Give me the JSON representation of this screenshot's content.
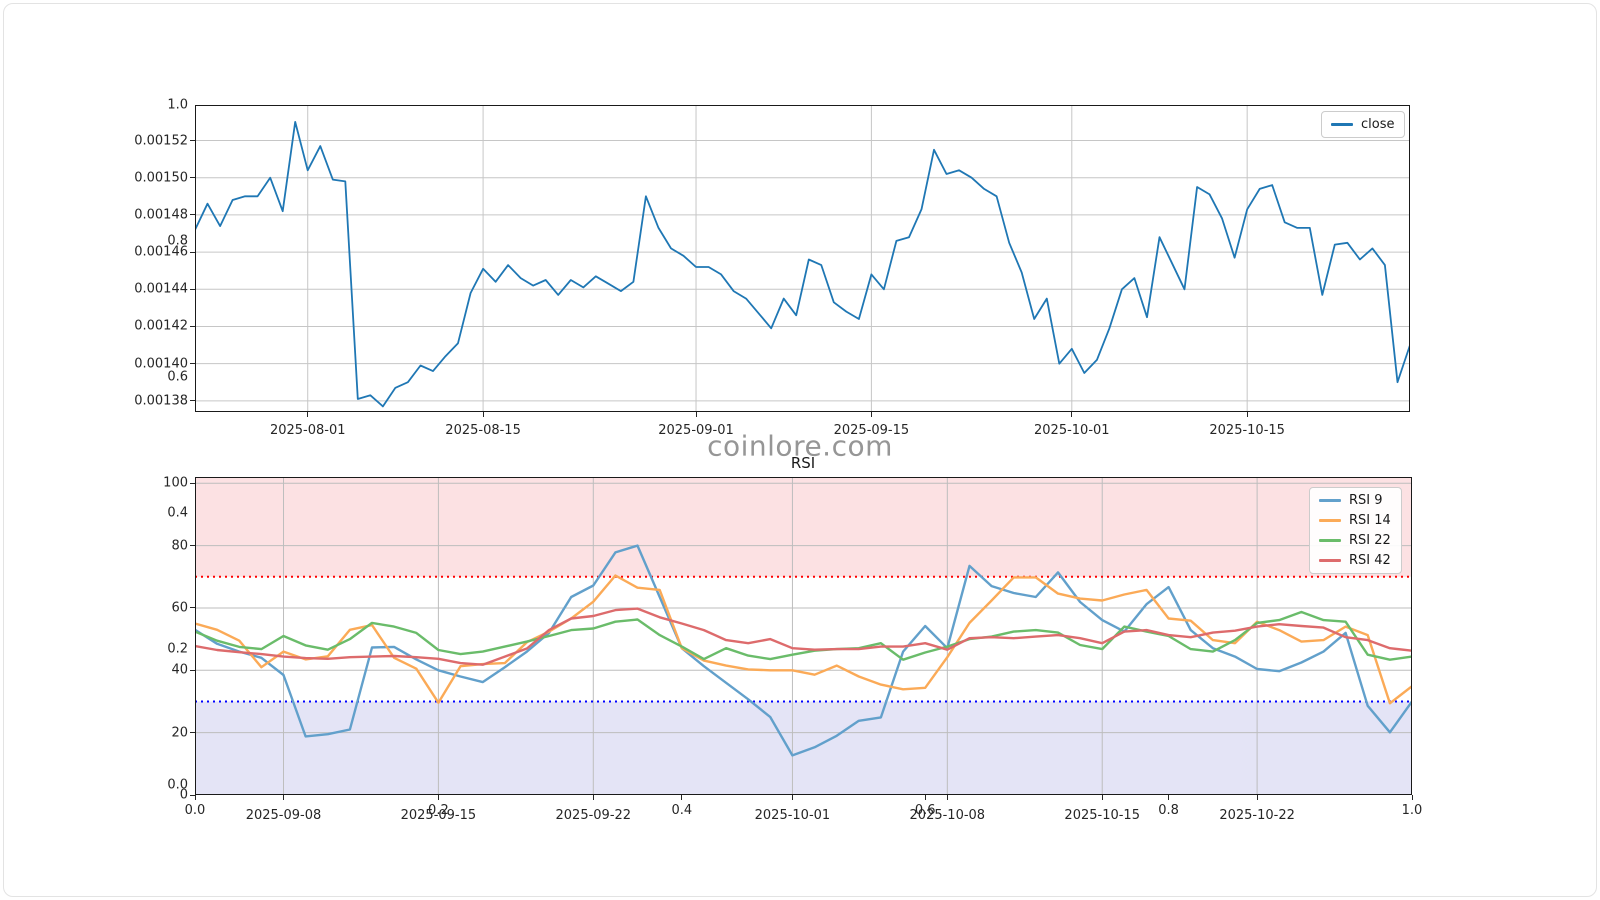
{
  "watermark": "coinlore.com",
  "overlay_axis": {
    "left_labels": [
      "1.0",
      "0.8",
      "0.6",
      "0.4",
      "0.2",
      "0.0"
    ],
    "bottom_labels": [
      "0.0",
      "0.2",
      "0.4",
      "0.6",
      "0.8",
      "1.0"
    ]
  },
  "chart_data": [
    {
      "type": "line",
      "title": "",
      "name": "price-close-chart",
      "legend": [
        "close"
      ],
      "legend_position": "upper right",
      "line_color": "#1f77b4",
      "grid": true,
      "ylim": [
        0.001374,
        0.0015391
      ],
      "y_ticks": [
        0.00138,
        0.0014,
        0.00142,
        0.00144,
        0.00146,
        0.00148,
        0.0015,
        0.00152
      ],
      "x_start_date": "2025-07-23",
      "x_end_date": "2025-10-28",
      "x_total_days": 97,
      "x_ticks": [
        {
          "label": "2025-08-01",
          "day": 9
        },
        {
          "label": "2025-08-15",
          "day": 23
        },
        {
          "label": "2025-09-01",
          "day": 40
        },
        {
          "label": "2025-09-15",
          "day": 54
        },
        {
          "label": "2025-10-01",
          "day": 70
        },
        {
          "label": "2025-10-15",
          "day": 84
        }
      ],
      "values": [
        0.001472,
        0.001486,
        0.001474,
        0.001488,
        0.00149,
        0.00149,
        0.0015,
        0.001482,
        0.00153,
        0.001504,
        0.001517,
        0.001499,
        0.001498,
        0.001381,
        0.001383,
        0.001377,
        0.001387,
        0.00139,
        0.001399,
        0.001396,
        0.001404,
        0.001411,
        0.001438,
        0.001451,
        0.001444,
        0.001453,
        0.001446,
        0.001442,
        0.001445,
        0.001437,
        0.001445,
        0.001441,
        0.001447,
        0.001443,
        0.001439,
        0.001444,
        0.00149,
        0.001473,
        0.001462,
        0.001458,
        0.001452,
        0.001452,
        0.001448,
        0.001439,
        0.001435,
        0.001427,
        0.001419,
        0.001435,
        0.001426,
        0.001456,
        0.001453,
        0.001433,
        0.001428,
        0.001424,
        0.001448,
        0.00144,
        0.001466,
        0.001468,
        0.001483,
        0.001515,
        0.001502,
        0.001504,
        0.0015,
        0.001494,
        0.00149,
        0.001465,
        0.001449,
        0.001424,
        0.001435,
        0.0014,
        0.001408,
        0.001395,
        0.001402,
        0.001419,
        0.00144,
        0.001446,
        0.001425,
        0.001468,
        0.001454,
        0.00144,
        0.001495,
        0.001491,
        0.001478,
        0.001457,
        0.001483,
        0.001494,
        0.001496,
        0.001476,
        0.001473,
        0.001473,
        0.001437,
        0.001464,
        0.001465,
        0.001456,
        0.001462,
        0.001453,
        0.00139,
        0.00141
      ]
    },
    {
      "type": "line",
      "title": "RSI",
      "name": "rsi-chart",
      "legend_position": "upper right",
      "grid": true,
      "ylim": [
        0,
        102
      ],
      "y_ticks": [
        0,
        20,
        40,
        60,
        80,
        100
      ],
      "overbought_level": 70,
      "oversold_level": 30,
      "overbought_line_color": "#ff0000",
      "oversold_line_color": "#0000ff",
      "overbought_band_color": "#fce1e3",
      "oversold_band_color": "#e4e4f6",
      "x_start_date": "2025-09-04",
      "x_end_date": "2025-10-29",
      "x_total_days": 55,
      "x_ticks": [
        {
          "label": "2025-09-08",
          "day": 4
        },
        {
          "label": "2025-09-15",
          "day": 11
        },
        {
          "label": "2025-09-22",
          "day": 18
        },
        {
          "label": "2025-10-01",
          "day": 27
        },
        {
          "label": "2025-10-08",
          "day": 34
        },
        {
          "label": "2025-10-15",
          "day": 41
        },
        {
          "label": "2025-10-22",
          "day": 48
        }
      ],
      "series": [
        {
          "name": "RSI 9",
          "color": "#62a0cb",
          "values": [
            53,
            48.5,
            46,
            44,
            38.5,
            18.8,
            19.5,
            21,
            47.3,
            47.5,
            43.5,
            40,
            38,
            36.2,
            41,
            46,
            52,
            63.5,
            67.2,
            77.8,
            80,
            63.5,
            47.1,
            41.3,
            36,
            30.7,
            25,
            12.7,
            15.3,
            19,
            23.8,
            24.9,
            46,
            54.2,
            47.1,
            73.5,
            67,
            64.8,
            63.5,
            71.4,
            61.9,
            56.1,
            52.4,
            61.2,
            66.7,
            52.9,
            47.1,
            44.4,
            40.4,
            39.7,
            42.5,
            46,
            52,
            28.6,
            20.1,
            30
          ]
        },
        {
          "name": "RSI 14",
          "color": "#fbaa57",
          "values": [
            55,
            53,
            49.5,
            41,
            46,
            43.5,
            44.5,
            53,
            54.5,
            44,
            40.5,
            29.6,
            41.3,
            42,
            42.3,
            49,
            52.4,
            56.6,
            62,
            70.4,
            66.5,
            65.8,
            47.1,
            43.1,
            41.5,
            40.3,
            40,
            40,
            38.6,
            41.5,
            38,
            35.4,
            33.9,
            34.4,
            44.2,
            55.2,
            62.4,
            69.8,
            69.8,
            64.6,
            63,
            62.4,
            64.3,
            65.8,
            56.6,
            55.9,
            49.7,
            48.7,
            55.6,
            52.9,
            49.2,
            49.7,
            54,
            51.3,
            29.4,
            34.9
          ]
        },
        {
          "name": "RSI 22",
          "color": "#6abc6a",
          "values": [
            52.4,
            49.5,
            47.5,
            46.8,
            51,
            48,
            46.6,
            50,
            55.2,
            54,
            52,
            46.5,
            45.2,
            46,
            47.6,
            49.2,
            51,
            52.9,
            53.4,
            55.6,
            56.3,
            51.3,
            47.6,
            43.6,
            47.1,
            44.7,
            43.6,
            45,
            46.3,
            46.8,
            47.1,
            48.7,
            43.4,
            45.7,
            47.6,
            50,
            50.8,
            52.4,
            52.9,
            52.1,
            48.1,
            46.8,
            54,
            52.4,
            51,
            46.8,
            46,
            49.7,
            55.2,
            56.1,
            58.7,
            56.1,
            55.6,
            45,
            43.4,
            44.4
          ]
        },
        {
          "name": "RSI 42",
          "color": "#dd6b6c",
          "values": [
            47.8,
            46.5,
            45.8,
            45.2,
            44.4,
            43.9,
            43.7,
            44.2,
            44.4,
            44.6,
            44.2,
            43.7,
            42.3,
            41.8,
            44.4,
            47,
            52.9,
            56.6,
            57.4,
            59.3,
            59.8,
            57,
            55,
            52.9,
            49.7,
            48.7,
            50,
            47.1,
            46.6,
            46.8,
            46.8,
            47.6,
            47.6,
            48.7,
            46.6,
            50.3,
            50.6,
            50.3,
            50.8,
            51.3,
            50.3,
            48.7,
            52.4,
            52.9,
            51.3,
            50.6,
            52.1,
            52.7,
            54,
            54.8,
            54.2,
            53.7,
            50.6,
            49.7,
            47.1,
            46.3
          ]
        }
      ]
    }
  ]
}
